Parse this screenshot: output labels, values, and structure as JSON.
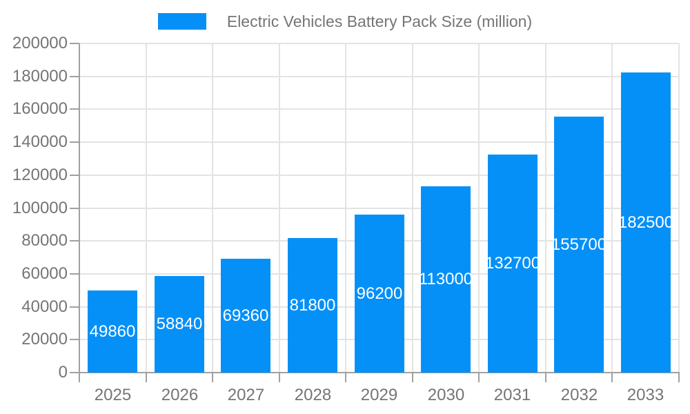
{
  "chart": {
    "legend_label": "Electric Vehicles Battery Pack Size (million)"
  },
  "chart_data": {
    "type": "bar",
    "title": "Electric Vehicles Battery Pack Size (million)",
    "categories": [
      "2025",
      "2026",
      "2027",
      "2028",
      "2029",
      "2030",
      "2031",
      "2032",
      "2033"
    ],
    "values": [
      49860,
      58840,
      69360,
      81800,
      96200,
      113000,
      132700,
      155700,
      182500
    ],
    "xlabel": "",
    "ylabel": "",
    "ylim": [
      0,
      200000
    ],
    "ytick_step": 20000,
    "ytick_labels": [
      "0",
      "20000",
      "40000",
      "60000",
      "80000",
      "100000",
      "120000",
      "140000",
      "160000",
      "180000",
      "200000"
    ],
    "grid": "on",
    "legend_position": "top-center",
    "value_labels": "white, centered inside bars",
    "colors": {
      "bar": "#0590f8",
      "bar_label": "#ffffff",
      "axis_text": "#757575",
      "legend_text": "#757575",
      "grid_line": "#e3e3e3",
      "axis_line": "#a0a0a0",
      "background": "#ffffff"
    }
  }
}
